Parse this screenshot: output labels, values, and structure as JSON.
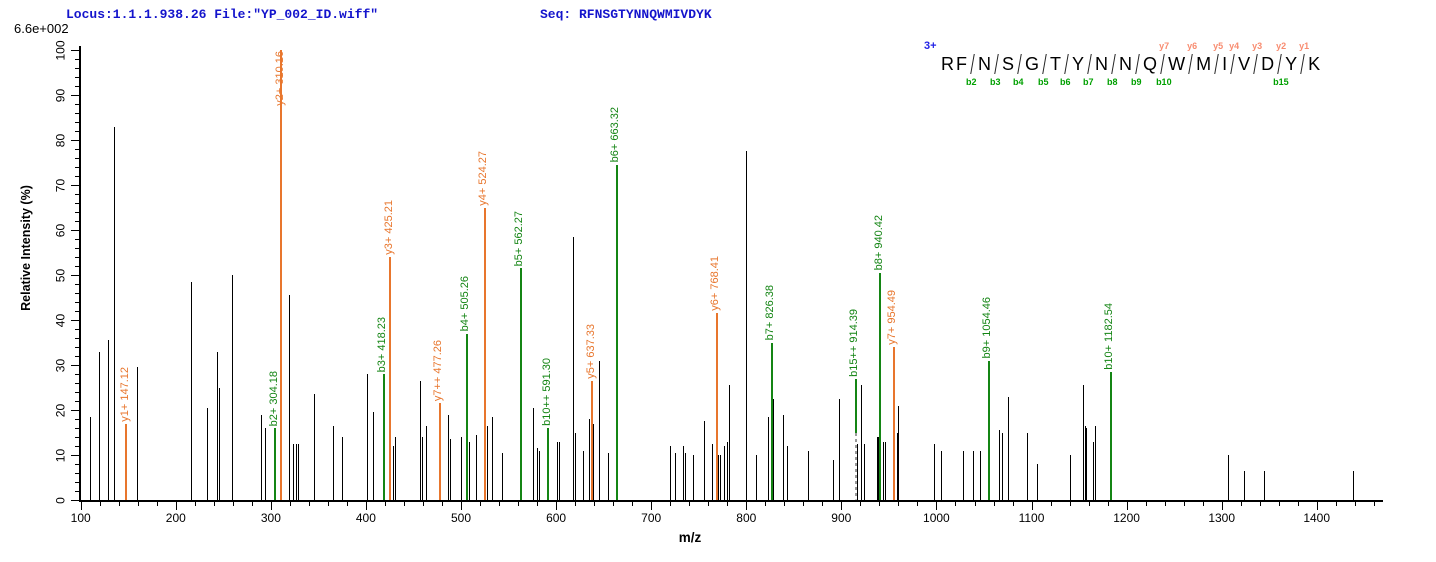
{
  "header": {
    "locus_file": "Locus:1.1.1.938.26 File:\"YP_002_ID.wiff\"",
    "seq_label": "Seq: RFNSGTYNNQWMIVDYK",
    "max_intensity": "6.6e+002"
  },
  "axes": {
    "x_major_start": 100,
    "x_major_end": 1400,
    "x_major_step": 100,
    "x_minor_step": 20,
    "x_minor_end": 1460,
    "y_max": 100,
    "y_major_step": 10,
    "y_minor_step": 2
  },
  "sequence": {
    "charge": "3+",
    "residues": [
      "R",
      "F",
      "N",
      "S",
      "G",
      "T",
      "Y",
      "N",
      "N",
      "Q",
      "W",
      "M",
      "I",
      "V",
      "D",
      "Y",
      "K"
    ],
    "cleavages": [
      {
        "after_index": 2,
        "b": "b2"
      },
      {
        "after_index": 3,
        "b": "b3"
      },
      {
        "after_index": 4,
        "b": "b4"
      },
      {
        "after_index": 5,
        "b": "b5"
      },
      {
        "after_index": 6,
        "b": "b6"
      },
      {
        "after_index": 7,
        "b": "b7"
      },
      {
        "after_index": 8,
        "b": "b8"
      },
      {
        "after_index": 9,
        "b": "b9"
      },
      {
        "after_index": 10,
        "b": "b10",
        "y": "y7"
      },
      {
        "after_index": 11,
        "y": "y6"
      },
      {
        "after_index": 12,
        "y": "y5"
      },
      {
        "after_index": 13,
        "y": "y4"
      },
      {
        "after_index": 14,
        "y": "y3"
      },
      {
        "after_index": 15,
        "b": "b15",
        "y": "y2"
      },
      {
        "after_index": 16,
        "y": "y1"
      }
    ]
  },
  "colors": {
    "y_ion": "#E8762D",
    "b_ion": "#148514",
    "seq_y": "#F88C70",
    "seq_b": "#00A000",
    "charge_blue": "#2222E6",
    "header_blue": "#1414CC",
    "peak_black": "#000000"
  },
  "chart_data": {
    "type": "bar",
    "title": "MS/MS fragmentation spectrum",
    "xlabel": "m/z",
    "ylabel": "Relative Intensity (%)",
    "max_intensity_label": "6.6e+002",
    "xlim": [
      100,
      1460
    ],
    "ylim": [
      0,
      100
    ],
    "grid": false,
    "annotated_peaks": [
      {
        "label": "y1+ 147.12",
        "ion": "y",
        "mz": 147.12,
        "intensity": 17
      },
      {
        "label": "b2+ 304.18",
        "ion": "b",
        "mz": 304.18,
        "intensity": 16
      },
      {
        "label": "y2+ 310.16",
        "ion": "y",
        "mz": 310.16,
        "intensity": 100
      },
      {
        "label": "b3+ 418.23",
        "ion": "b",
        "mz": 418.23,
        "intensity": 28
      },
      {
        "label": "y3+ 425.21",
        "ion": "y",
        "mz": 425.21,
        "intensity": 54
      },
      {
        "label": "y7++ 477.26",
        "ion": "y",
        "mz": 477.26,
        "intensity": 21.5
      },
      {
        "label": "b4+ 505.26",
        "ion": "b",
        "mz": 505.26,
        "intensity": 37
      },
      {
        "label": "y4+ 524.27",
        "ion": "y",
        "mz": 524.27,
        "intensity": 65
      },
      {
        "label": "b5+ 562.27",
        "ion": "b",
        "mz": 562.27,
        "intensity": 51.5
      },
      {
        "label": "b10++ 591.30",
        "ion": "b",
        "mz": 591.3,
        "intensity": 16
      },
      {
        "label": "y5+ 637.33",
        "ion": "y",
        "mz": 637.33,
        "intensity": 26.5
      },
      {
        "label": "b6+ 663.32",
        "ion": "b",
        "mz": 663.32,
        "intensity": 74.5
      },
      {
        "label": "y6+ 768.41",
        "ion": "y",
        "mz": 768.41,
        "intensity": 41.5
      },
      {
        "label": "b7+ 826.38",
        "ion": "b",
        "mz": 826.38,
        "intensity": 35
      },
      {
        "label": "b15++ 914.39",
        "ion": "b",
        "mz": 914.39,
        "intensity": 27,
        "dashed": true
      },
      {
        "label": "b8+ 940.42",
        "ion": "b",
        "mz": 940.42,
        "intensity": 50.5
      },
      {
        "label": "y7+ 954.49",
        "ion": "y",
        "mz": 954.49,
        "intensity": 34
      },
      {
        "label": "b9+ 1054.46",
        "ion": "b",
        "mz": 1054.46,
        "intensity": 31
      },
      {
        "label": "b10+ 1182.54",
        "ion": "b",
        "mz": 1182.54,
        "intensity": 28.5
      }
    ],
    "peaks": [
      [
        110,
        18.5
      ],
      [
        119,
        33
      ],
      [
        129,
        35.5
      ],
      [
        135,
        83
      ],
      [
        159,
        29.5
      ],
      [
        216,
        48.5
      ],
      [
        233,
        20.5
      ],
      [
        243,
        33
      ],
      [
        245,
        25
      ],
      [
        259,
        50
      ],
      [
        290,
        19
      ],
      [
        294,
        16
      ],
      [
        319,
        45.5
      ],
      [
        323,
        12.5
      ],
      [
        326,
        12.5
      ],
      [
        328,
        12.5
      ],
      [
        345,
        23.5
      ],
      [
        365,
        16.5
      ],
      [
        375,
        14
      ],
      [
        401,
        28
      ],
      [
        407,
        19.5
      ],
      [
        428,
        12
      ],
      [
        431,
        14
      ],
      [
        457,
        26.5
      ],
      [
        459,
        14
      ],
      [
        463,
        16.5
      ],
      [
        486,
        19
      ],
      [
        488,
        13.5
      ],
      [
        500,
        14
      ],
      [
        508,
        13
      ],
      [
        516,
        14.5
      ],
      [
        527,
        16.5
      ],
      [
        533,
        18.5
      ],
      [
        543,
        10.5
      ],
      [
        576,
        20.5
      ],
      [
        580,
        11.5
      ],
      [
        582,
        11
      ],
      [
        601,
        13
      ],
      [
        603,
        13
      ],
      [
        618,
        58.5
      ],
      [
        620,
        15
      ],
      [
        628,
        11
      ],
      [
        635,
        18
      ],
      [
        639,
        17
      ],
      [
        645,
        31
      ],
      [
        655,
        10.5
      ],
      [
        720,
        12
      ],
      [
        725,
        10.5
      ],
      [
        733,
        12
      ],
      [
        735,
        10.5
      ],
      [
        744,
        10
      ],
      [
        755,
        17.5
      ],
      [
        764,
        12.5
      ],
      [
        770,
        10
      ],
      [
        772,
        10
      ],
      [
        777,
        12
      ],
      [
        780,
        13
      ],
      [
        782,
        25.5
      ],
      [
        800,
        77.5
      ],
      [
        810,
        10
      ],
      [
        823,
        18.5
      ],
      [
        828,
        22.5
      ],
      [
        839,
        19
      ],
      [
        843,
        12
      ],
      [
        865,
        11
      ],
      [
        891,
        9
      ],
      [
        898,
        22.5
      ],
      [
        916,
        12.5
      ],
      [
        921,
        25.5
      ],
      [
        924,
        12.5
      ],
      [
        937,
        14
      ],
      [
        939,
        14
      ],
      [
        944,
        13
      ],
      [
        946,
        13
      ],
      [
        958,
        15
      ],
      [
        960,
        21
      ],
      [
        997,
        12.5
      ],
      [
        1005,
        11
      ],
      [
        1028,
        11
      ],
      [
        1038,
        11
      ],
      [
        1046,
        11
      ],
      [
        1066,
        15.5
      ],
      [
        1069,
        15
      ],
      [
        1075,
        23
      ],
      [
        1095,
        15
      ],
      [
        1106,
        8
      ],
      [
        1140,
        10
      ],
      [
        1154,
        25.5
      ],
      [
        1156,
        16.5
      ],
      [
        1157,
        16
      ],
      [
        1165,
        13
      ],
      [
        1167,
        16.5
      ],
      [
        1307,
        10
      ],
      [
        1323,
        6.5
      ],
      [
        1344,
        6.5
      ],
      [
        1438,
        6.5
      ]
    ]
  }
}
